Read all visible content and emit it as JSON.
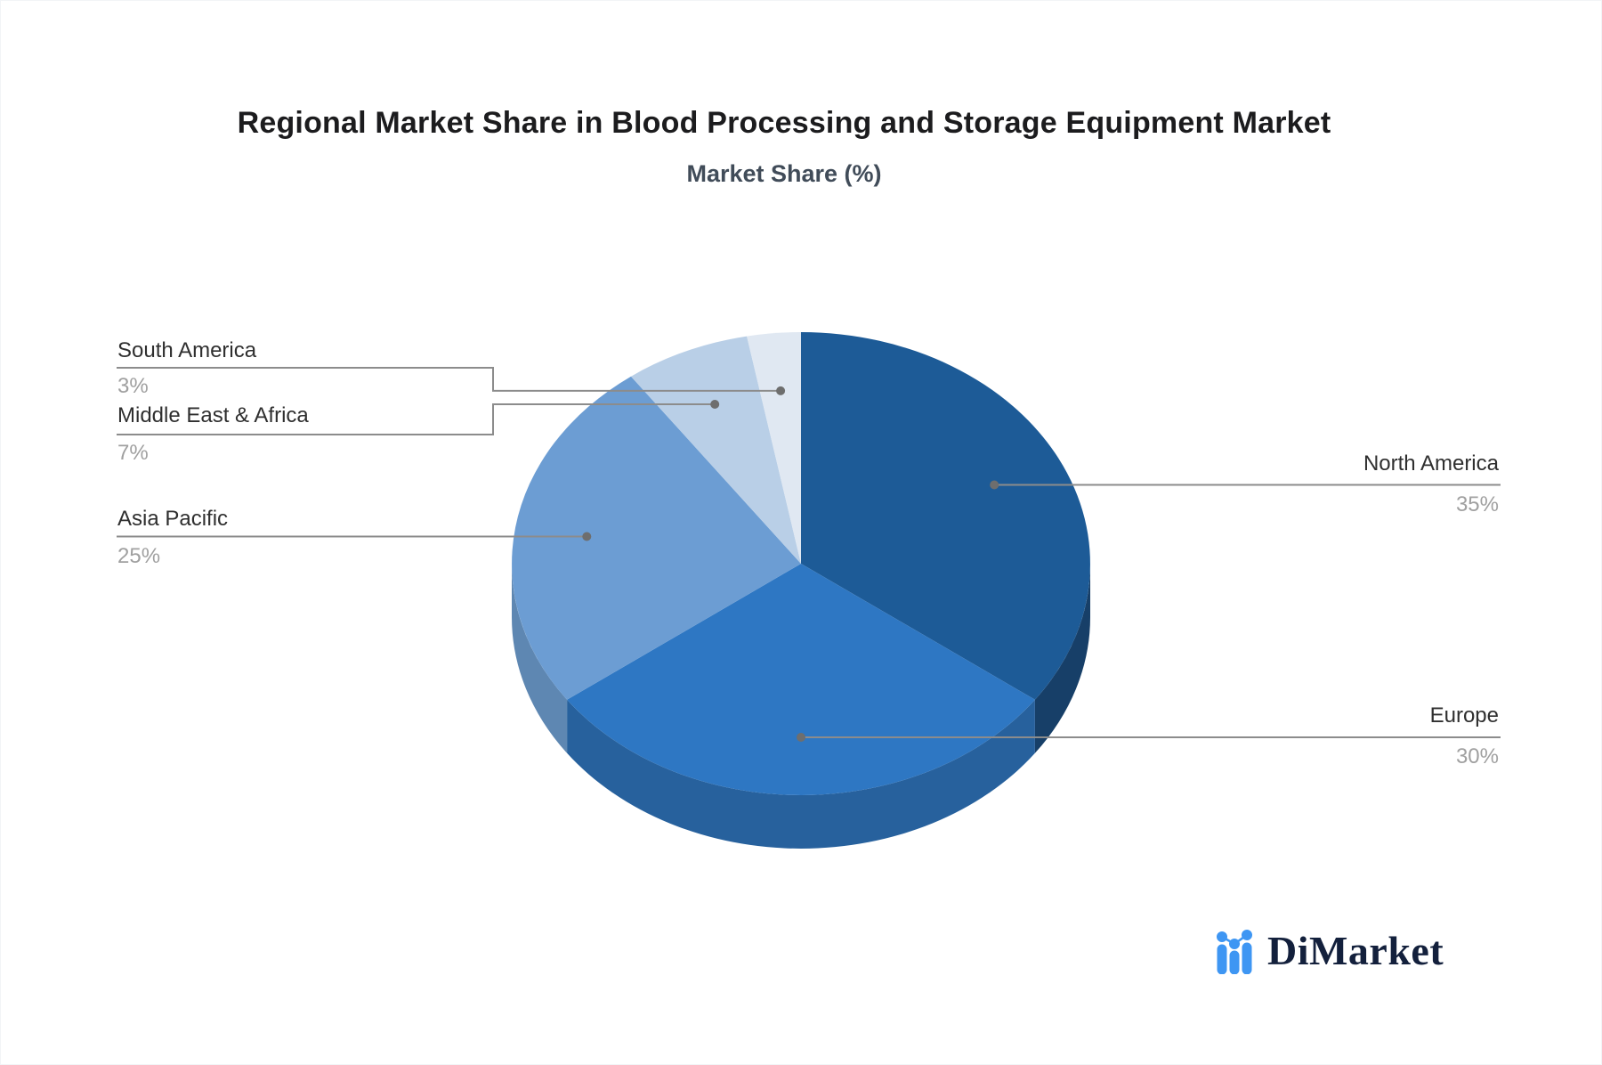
{
  "header": {
    "title": "Regional Market Share in Blood Processing and Storage Equipment Market",
    "subtitle": "Market Share (%)"
  },
  "chart_data": {
    "type": "pie",
    "title": "Regional Market Share in Blood Processing and Storage Equipment Market",
    "subtitle": "Market Share (%)",
    "unit": "%",
    "effect": "3d-depth",
    "start_angle_deg": 0,
    "direction": "clockwise",
    "categories": [
      "North America",
      "Europe",
      "Asia Pacific",
      "Middle East & Africa",
      "South America"
    ],
    "values": [
      35,
      30,
      25,
      7,
      3
    ],
    "value_labels": [
      "35%",
      "30%",
      "25%",
      "7%",
      "3%"
    ],
    "colors": [
      "#1d5b97",
      "#2e77c3",
      "#6c9dd3",
      "#b9cfe7",
      "#e0e8f2"
    ],
    "rim_colors": [
      "#173f68",
      "#27619d",
      "#5e87b2",
      "#9db4cc",
      "#c9d4e2"
    ],
    "leader_line_color": "#8c8c8c",
    "leader_dot_color": "#6e6e6e",
    "label_text_color": "#2f2f2f",
    "value_text_color": "#a0a0a0",
    "legend_position": "callout-labels"
  },
  "logo": {
    "text": "DiMarket",
    "text_color": "#13203c",
    "icon_color": "#3e96f3"
  }
}
